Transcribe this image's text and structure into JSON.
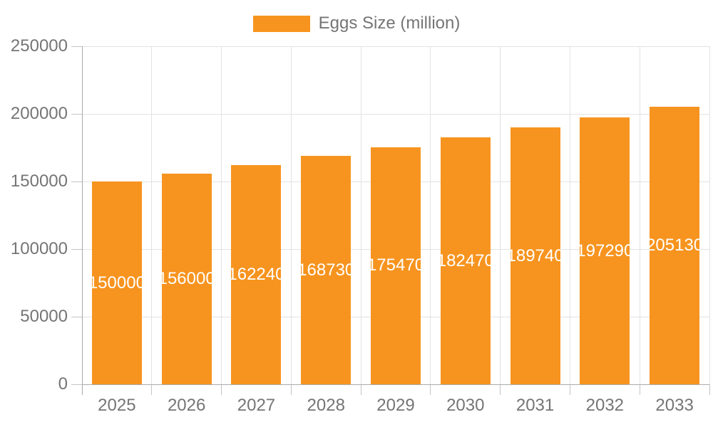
{
  "chart_data": {
    "type": "bar",
    "title": "",
    "legend": "Eggs Size (million)",
    "legend_position": "top-center",
    "categories": [
      "2025",
      "2026",
      "2027",
      "2028",
      "2029",
      "2030",
      "2031",
      "2032",
      "2033"
    ],
    "values": [
      150000,
      156000,
      162240,
      168730,
      175470,
      182470,
      189740,
      197290,
      205130
    ],
    "xlabel": "",
    "ylabel": "",
    "ylim": [
      0,
      250000
    ],
    "yticks": [
      0,
      50000,
      100000,
      150000,
      200000,
      250000
    ],
    "grid": true,
    "bar_labels_inside": true,
    "colors": {
      "bar": "#F7941F",
      "bar_label": "#FFFFFF",
      "axis_label": "#757575",
      "grid_line": "#E3E3E3",
      "axis_line": "#ABABAB",
      "tick_line": "#C4C4C4",
      "background": "#FFFFFF"
    }
  }
}
